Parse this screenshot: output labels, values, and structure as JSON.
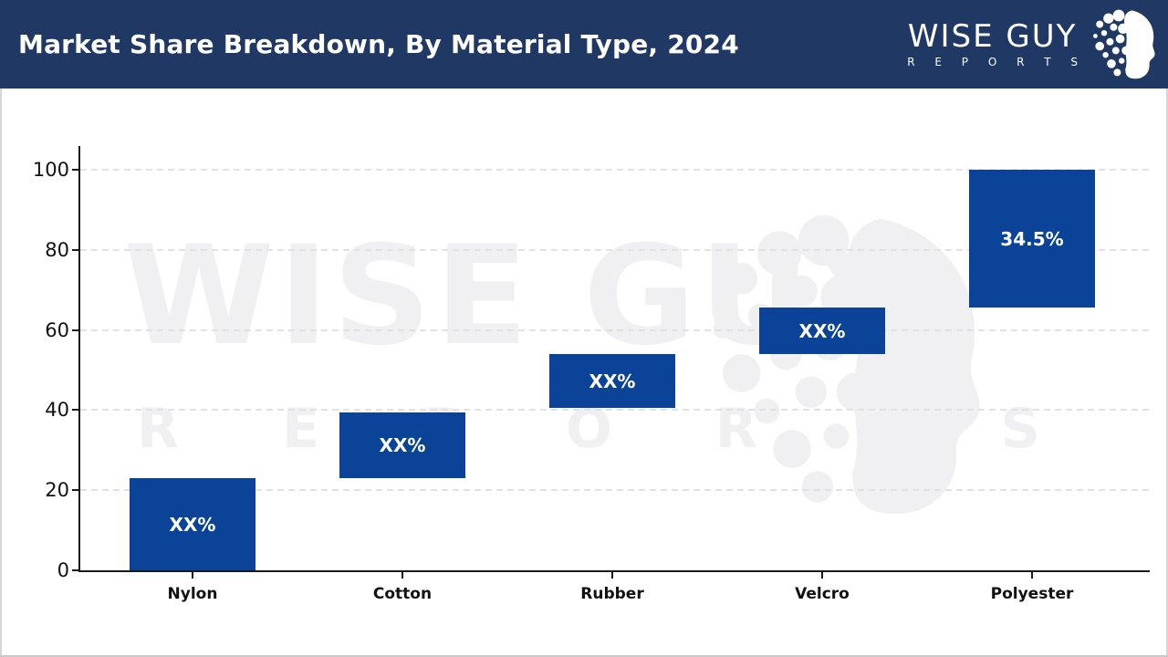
{
  "header": {
    "title": "Market Share Breakdown, By Material Type, 2024",
    "logo": {
      "wordmark": "WISE GUY",
      "subtext": "R E P O R T S"
    }
  },
  "watermark": {
    "wordmark": "WISE GUY",
    "subtext": "R E P O R T S"
  },
  "chart_data": {
    "type": "bar",
    "variant": "floating-waterfall",
    "title": "Market Share Breakdown, By Material Type, 2024",
    "categories": [
      "Nylon",
      "Cotton",
      "Rubber",
      "Velcro",
      "Polyester"
    ],
    "segments": [
      {
        "category": "Nylon",
        "start": 0,
        "end": 23,
        "label": "XX%"
      },
      {
        "category": "Cotton",
        "start": 23,
        "end": 39.5,
        "label": "XX%"
      },
      {
        "category": "Rubber",
        "start": 40.5,
        "end": 54,
        "label": "XX%"
      },
      {
        "category": "Velcro",
        "start": 54,
        "end": 65.5,
        "label": "XX%"
      },
      {
        "category": "Polyester",
        "start": 65.5,
        "end": 100,
        "label": "34.5%"
      }
    ],
    "yticks": [
      0,
      20,
      40,
      60,
      80,
      100
    ],
    "ylim": [
      0,
      105
    ],
    "xlabel": "",
    "ylabel": "",
    "grid": "horizontal-dashed",
    "legend": "none"
  },
  "colors": {
    "header_bg": "#1f3864",
    "bar": "#0a4398",
    "bar_label": "#ffffff",
    "grid": "#e1e1e1",
    "axis": "#1a1a1a",
    "watermark": "#f0f0f3",
    "page_border": "#d6d6d6"
  }
}
